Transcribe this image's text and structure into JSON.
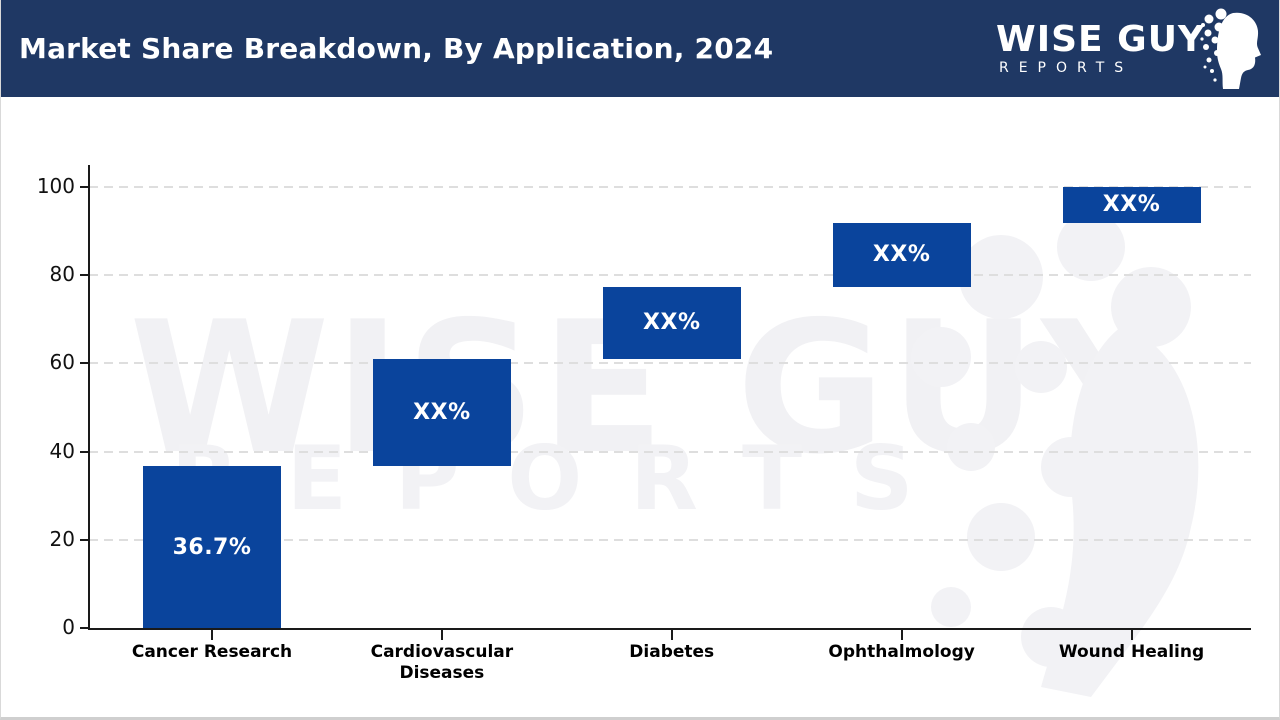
{
  "header": {
    "title": "Market Share Breakdown, By Application, 2024",
    "background_color": "#1f3864",
    "logo": {
      "wordmark": "WISE GUY",
      "subtext": "REPORTS",
      "head_icon": "dotted-face-profile"
    }
  },
  "watermark": {
    "line1": "WISE GUY",
    "line2": "REPORTS"
  },
  "chart_data": {
    "type": "bar",
    "subtype": "waterfall",
    "title": "Market Share Breakdown, By Application, 2024",
    "xlabel": "",
    "ylabel": "",
    "ylim": [
      0,
      100
    ],
    "yticks": [
      0,
      20,
      40,
      60,
      80,
      100
    ],
    "grid": "horizontal-dashed",
    "legend": "none",
    "bar_color": "#0a449c",
    "categories": [
      "Cancer Research",
      "Cardiovascular\nDiseases",
      "Diabetes",
      "Ophthalmology",
      "Wound Healing"
    ],
    "segments": [
      {
        "category": "Cancer Research",
        "start": 0,
        "end": 36.7,
        "label": "36.7%"
      },
      {
        "category": "Cardiovascular Diseases",
        "start": 36.7,
        "end": 61.1,
        "label": "XX%"
      },
      {
        "category": "Diabetes",
        "start": 61.1,
        "end": 77.4,
        "label": "XX%"
      },
      {
        "category": "Ophthalmology",
        "start": 77.4,
        "end": 91.9,
        "label": "XX%"
      },
      {
        "category": "Wound Healing",
        "start": 91.9,
        "end": 100,
        "label": "XX%"
      }
    ]
  }
}
